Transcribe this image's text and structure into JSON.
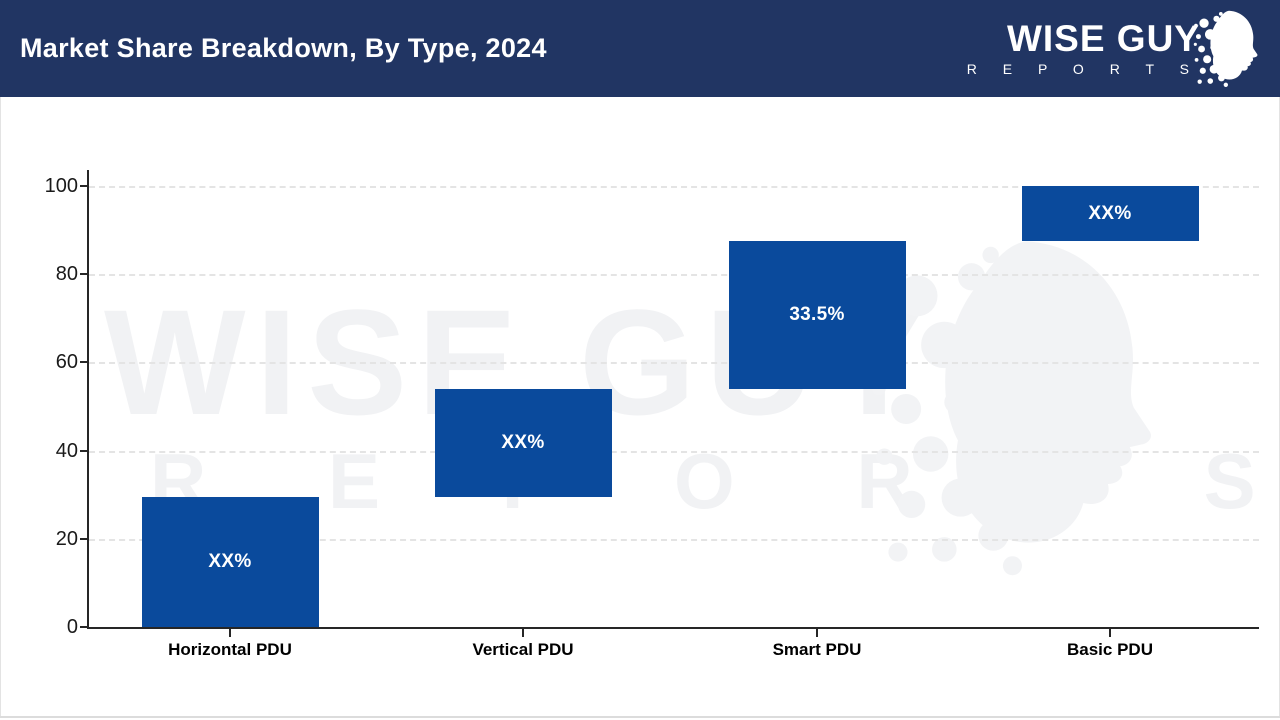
{
  "header": {
    "title": "Market Share Breakdown, By Type, 2024",
    "logo": {
      "line1": "WISE GUY",
      "line2": "R E P O R T S",
      "face_icon": "dotted-head-profile"
    },
    "background_color": "#213563"
  },
  "watermark": {
    "line1": "WISE GUY",
    "line2": "R E P O R T S",
    "face_icon": "dotted-head-profile",
    "color": "#f1f2f4"
  },
  "chart_data": {
    "type": "bar",
    "subtype": "waterfall",
    "title": "Market Share Breakdown, By Type, 2024",
    "categories": [
      "Horizontal PDU",
      "Vertical PDU",
      "Smart PDU",
      "Basic PDU"
    ],
    "bars": [
      {
        "category": "Horizontal PDU",
        "start": 0,
        "end": 29.5,
        "label": "XX%"
      },
      {
        "category": "Vertical PDU",
        "start": 29.5,
        "end": 54,
        "label": "XX%"
      },
      {
        "category": "Smart PDU",
        "start": 54,
        "end": 87.5,
        "label": "33.5%"
      },
      {
        "category": "Basic PDU",
        "start": 87.5,
        "end": 100,
        "label": "XX%"
      }
    ],
    "xlabel": "",
    "ylabel": "",
    "ylim": [
      0,
      100
    ],
    "yticks": [
      0,
      20,
      40,
      60,
      80,
      100
    ],
    "grid": "dashed-horizontal-gridlines",
    "legend": "none",
    "bar_color": "#0a4a9c",
    "bar_label_color": "#ffffff",
    "axis_color": "#262626"
  }
}
